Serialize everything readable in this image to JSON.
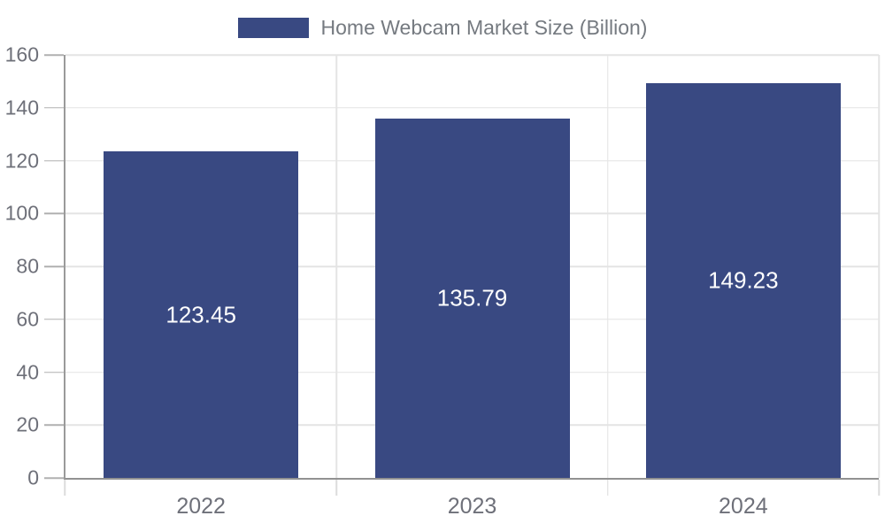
{
  "chart_data": {
    "type": "bar",
    "categories": [
      "2022",
      "2023",
      "2024"
    ],
    "series": [
      {
        "name": "Home Webcam Market Size (Billion)",
        "values": [
          123.45,
          135.79,
          149.23
        ],
        "value_labels": [
          "123.45",
          "135.79",
          "149.23"
        ],
        "color": "#394982"
      }
    ],
    "title": "",
    "xlabel": "",
    "ylabel": "",
    "ylim": [
      0,
      160
    ],
    "yticks": [
      "0",
      "20",
      "40",
      "60",
      "80",
      "100",
      "120",
      "140",
      "160"
    ],
    "grid": true,
    "legend_position": "top-center",
    "colors": {
      "bar": "#394982",
      "value_label_text": "#ffffff",
      "axis_text": "#6e7079",
      "legend_text": "#757a80",
      "gridline": "#e4e4e4",
      "axis_line": "#9a9a9a"
    }
  }
}
